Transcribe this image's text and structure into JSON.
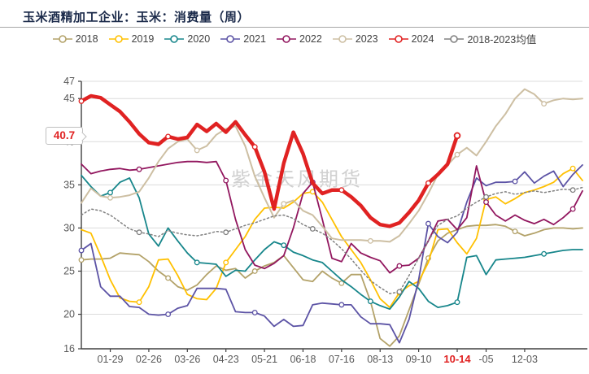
{
  "title": "玉米酒精加工企业：玉米：消费量（周）",
  "watermark": "紫金天风期货",
  "current_value_label": "40.7",
  "legend": [
    {
      "label": "2018",
      "color": "#b3a269"
    },
    {
      "label": "2019",
      "color": "#ffc000"
    },
    {
      "label": "2020",
      "color": "#17868b"
    },
    {
      "label": "2021",
      "color": "#5c53a5"
    },
    {
      "label": "2022",
      "color": "#92175f"
    },
    {
      "label": "2023",
      "color": "#cdbfa3"
    },
    {
      "label": "2024",
      "color": "#e02222"
    },
    {
      "label": "2018-2023均值",
      "color": "#808080"
    }
  ],
  "colors": {
    "grid": "#dcdcdc",
    "axis": "#404040",
    "tick_text": "#595959",
    "highlight": "#e02222"
  },
  "chart_data": {
    "type": "line",
    "title": "玉米酒精加工企业：玉米：消费量（周）",
    "x_axis": {
      "tick_labels": [
        "01-29",
        "02-26",
        "03-26",
        "04-23",
        "05-21",
        "06-18",
        "07-16",
        "08-13",
        "09-10",
        "10-14",
        "-05",
        "12-03"
      ],
      "tick_indices": [
        3,
        7,
        11,
        15,
        19,
        23,
        27,
        31,
        35,
        39,
        42,
        46
      ],
      "highlight_label": "10-14",
      "total_points": 53
    },
    "y_axis": {
      "ticks": [
        47,
        45,
        40,
        35,
        30,
        25,
        20,
        16
      ],
      "min": 16,
      "max": 47,
      "grid_ticks": [
        47,
        45,
        40,
        35,
        30,
        25,
        20
      ]
    },
    "series": [
      {
        "name": "2018",
        "color": "#b3a269",
        "width": 1.8,
        "dash": "",
        "values": [
          26.3,
          26.4,
          26.4,
          26.5,
          27.1,
          27.0,
          26.9,
          26.1,
          25.0,
          24.2,
          23.2,
          22.8,
          23.4,
          24.6,
          25.6,
          25.1,
          25.3,
          24.2,
          25.0,
          25.6,
          26.0,
          26.8,
          25.4,
          24.0,
          23.8,
          25.0,
          24.2,
          23.6,
          24.6,
          24.6,
          21.5,
          17.2,
          16.3,
          17.5,
          20.5,
          23.5,
          26.5,
          28.5,
          29.4,
          29.8,
          30.2,
          30.3,
          30.3,
          30.4,
          30.2,
          29.6,
          29.1,
          29.4,
          29.8,
          30.0,
          30.0,
          29.9,
          30.0
        ]
      },
      {
        "name": "2019",
        "color": "#ffc000",
        "width": 1.8,
        "dash": "",
        "values": [
          29.8,
          29.4,
          26.8,
          24.0,
          21.9,
          21.5,
          21.4,
          23.2,
          26.3,
          26.4,
          24.5,
          22.3,
          21.8,
          21.7,
          23.0,
          26.0,
          27.5,
          29.0,
          31.0,
          32.3,
          32.4,
          32.3,
          33.0,
          34.0,
          34.2,
          33.0,
          31.0,
          29.0,
          27.5,
          26.0,
          24.0,
          21.8,
          20.8,
          22.5,
          23.3,
          23.8,
          26.0,
          29.8,
          29.9,
          28.3,
          27.0,
          28.8,
          33.3,
          33.6,
          32.8,
          33.4,
          34.1,
          34.4,
          34.8,
          35.3,
          36.3,
          36.9,
          35.5
        ]
      },
      {
        "name": "2020",
        "color": "#17868b",
        "width": 1.8,
        "dash": "",
        "values": [
          36.1,
          34.8,
          33.7,
          34.1,
          35.3,
          35.8,
          33.5,
          29.3,
          27.9,
          30.0,
          28.5,
          27.1,
          26.0,
          25.9,
          25.8,
          24.4,
          25.1,
          25.0,
          26.3,
          27.5,
          28.4,
          28.0,
          27.2,
          26.8,
          26.3,
          26.0,
          25.0,
          24.0,
          23.2,
          22.3,
          21.5,
          21.0,
          20.6,
          22.0,
          23.8,
          23.0,
          21.5,
          20.8,
          21.0,
          21.4,
          26.6,
          26.8,
          24.6,
          26.3,
          26.4,
          26.5,
          26.6,
          26.8,
          27.0,
          27.2,
          27.4,
          27.5,
          27.5
        ]
      },
      {
        "name": "2021",
        "color": "#5c53a5",
        "width": 1.8,
        "dash": "",
        "values": [
          27.4,
          28.2,
          23.2,
          22.1,
          22.1,
          20.9,
          20.8,
          20.0,
          19.9,
          20.0,
          20.7,
          21.0,
          23.0,
          23.0,
          23.0,
          22.9,
          20.3,
          20.2,
          20.2,
          19.8,
          18.6,
          19.4,
          18.6,
          18.7,
          21.1,
          21.3,
          21.2,
          21.1,
          21.1,
          19.7,
          18.9,
          18.9,
          18.8,
          16.7,
          19.4,
          24.0,
          30.5,
          29.0,
          28.3,
          29.5,
          33.0,
          35.8,
          34.9,
          35.3,
          35.3,
          35.4,
          36.5,
          35.2,
          36.0,
          36.6,
          34.8,
          36.2,
          37.3
        ]
      },
      {
        "name": "2022",
        "color": "#92175f",
        "width": 1.8,
        "dash": "",
        "values": [
          37.4,
          36.3,
          36.6,
          36.8,
          36.9,
          36.7,
          36.8,
          37.0,
          37.2,
          37.4,
          37.6,
          37.7,
          37.7,
          37.6,
          37.7,
          35.5,
          31.0,
          27.5,
          25.7,
          25.3,
          25.9,
          26.8,
          30.0,
          34.0,
          35.3,
          31.0,
          26.5,
          26.1,
          28.2,
          27.1,
          26.6,
          26.2,
          24.8,
          25.6,
          25.7,
          26.5,
          28.5,
          30.8,
          31.0,
          29.8,
          31.2,
          37.2,
          33.0,
          31.5,
          30.8,
          31.5,
          30.9,
          30.5,
          31.0,
          30.4,
          31.2,
          32.2,
          34.3
        ]
      },
      {
        "name": "2023",
        "color": "#cdbfa3",
        "width": 2.0,
        "dash": "",
        "values": [
          32.9,
          34.6,
          33.7,
          33.5,
          33.6,
          33.8,
          34.2,
          35.8,
          37.7,
          39.2,
          40.0,
          40.3,
          39.0,
          39.5,
          40.8,
          41.5,
          41.8,
          39.5,
          36.0,
          33.5,
          31.2,
          32.8,
          33.2,
          32.0,
          31.5,
          30.2,
          28.8,
          28.6,
          28.6,
          28.6,
          28.5,
          28.5,
          28.4,
          29.1,
          30.5,
          32.0,
          34.0,
          36.2,
          37.3,
          38.5,
          39.3,
          38.4,
          40.0,
          41.8,
          43.2,
          45.0,
          46.1,
          45.5,
          44.4,
          44.8,
          45.0,
          44.9,
          45.0
        ]
      },
      {
        "name": "2024",
        "color": "#e02222",
        "width": 4.5,
        "dash": "",
        "end_marker": true,
        "values": [
          44.7,
          45.3,
          45.1,
          44.3,
          43.5,
          42.3,
          40.9,
          39.9,
          39.7,
          40.6,
          40.3,
          40.5,
          42.0,
          41.2,
          42.1,
          41.1,
          42.3,
          40.8,
          39.4,
          36.5,
          32.2,
          37.5,
          41.1,
          38.6,
          35.2,
          34.0,
          34.4,
          34.4,
          33.6,
          32.6,
          31.2,
          30.4,
          30.2,
          30.6,
          31.8,
          33.2,
          35.2,
          36.2,
          37.4,
          40.7
        ]
      },
      {
        "name": "2018-2023均值",
        "color": "#808080",
        "width": 1.5,
        "dash": "2 3",
        "values": [
          31.5,
          32.2,
          32.0,
          31.5,
          30.7,
          29.9,
          29.5,
          29.3,
          29.0,
          29.7,
          29.4,
          29.2,
          29.1,
          29.3,
          29.6,
          29.5,
          29.9,
          30.3,
          30.6,
          31.0,
          31.4,
          31.5,
          31.1,
          30.4,
          29.9,
          29.4,
          28.6,
          27.6,
          26.4,
          25.1,
          23.9,
          23.1,
          22.4,
          22.6,
          24.5,
          26.5,
          28.5,
          30.3,
          31.0,
          31.4,
          32.3,
          33.0,
          33.6,
          34.0,
          34.2,
          33.9,
          34.1,
          34.3,
          34.1,
          34.3,
          34.5,
          34.4,
          34.7
        ]
      }
    ],
    "current_point": {
      "series": "2024",
      "label": "40.7",
      "x_label": "10-14"
    },
    "legend_position": "top",
    "grid": true,
    "marker_every": 9
  }
}
